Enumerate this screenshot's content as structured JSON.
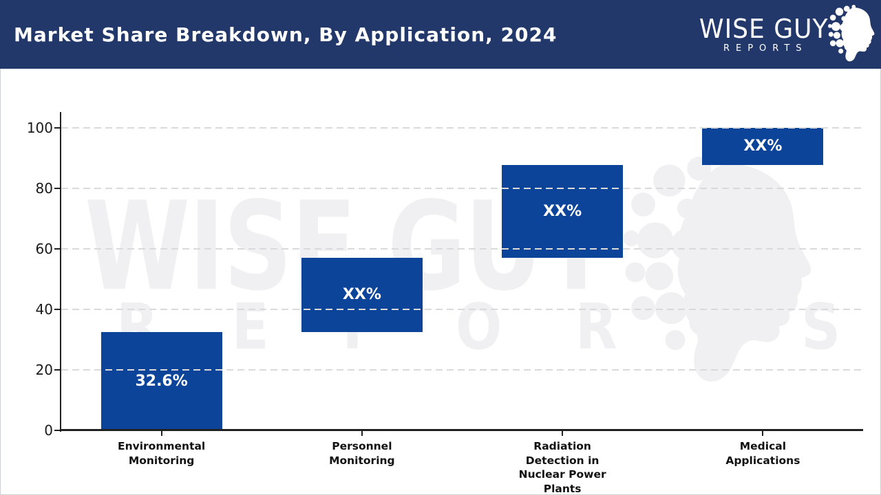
{
  "header": {
    "title": "Market Share Breakdown, By Application, 2024",
    "logo_line1": "WISE GUY",
    "logo_line2": "REPORTS"
  },
  "watermark": {
    "line1": "WISE GUY",
    "line2": "R E P O R T S"
  },
  "colors": {
    "header_bg": "#22386a",
    "bar": "#0b4499",
    "bar_label": "#ffffff",
    "axis": "#212121",
    "gridline": "#dadada",
    "watermark": "#f0f0f3"
  },
  "chart_data": {
    "type": "bar",
    "subtype": "waterfall",
    "title": "Market Share Breakdown, By Application, 2024",
    "categories": [
      "Environmental Monitoring",
      "Personnel Monitoring",
      "Radiation Detection in Nuclear Power Plants",
      "Medical Applications"
    ],
    "bars": [
      {
        "start": 0,
        "end": 32.6,
        "label": "32.6%"
      },
      {
        "start": 32.6,
        "end": 57.1,
        "label": "XX%"
      },
      {
        "start": 57.1,
        "end": 87.8,
        "label": "XX%"
      },
      {
        "start": 87.8,
        "end": 100,
        "label": "XX%"
      }
    ],
    "yticks": [
      0,
      20,
      40,
      60,
      80,
      100
    ],
    "ylim": [
      0,
      105
    ],
    "xlabel": "",
    "ylabel": "",
    "grid": "horizontal-dashed",
    "legend": "none"
  }
}
